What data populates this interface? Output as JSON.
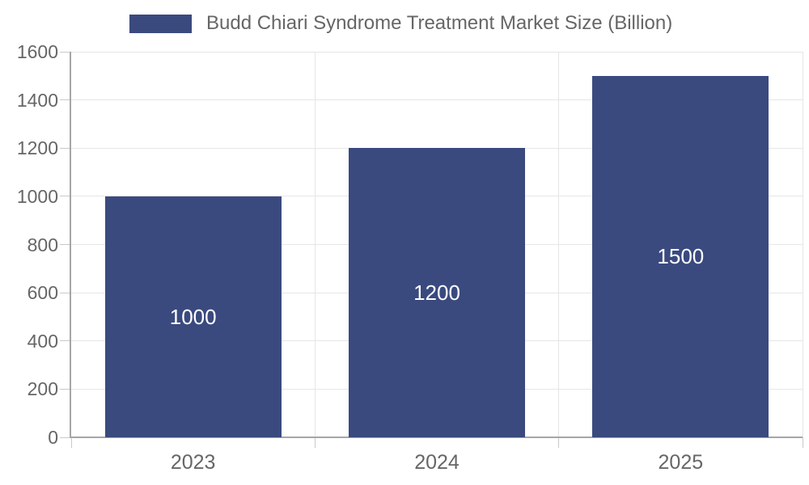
{
  "chart_data": {
    "type": "bar",
    "title": "Budd Chiari Syndrome Treatment Market Size (Billion)",
    "categories": [
      "2023",
      "2024",
      "2025"
    ],
    "values": [
      1000,
      1200,
      1500
    ],
    "data_labels": [
      "1000",
      "1200",
      "1500"
    ],
    "xlabel": "",
    "ylabel": "",
    "ylim": [
      0,
      1600
    ],
    "ytick_step": 200,
    "yticks": [
      0,
      200,
      400,
      600,
      800,
      1000,
      1200,
      1400,
      1600
    ],
    "grid": true,
    "legend_position": "top",
    "colors": {
      "bar": "#3A4A7F",
      "axis_text": "#666666",
      "gridline": "#e6e6e6",
      "axis_line": "#a6a6a6",
      "tick": "#c9c9c9",
      "data_label": "#ffffff",
      "background": "#ffffff"
    }
  },
  "legend": {
    "label": "Budd Chiari Syndrome Treatment Market Size (Billion)"
  }
}
